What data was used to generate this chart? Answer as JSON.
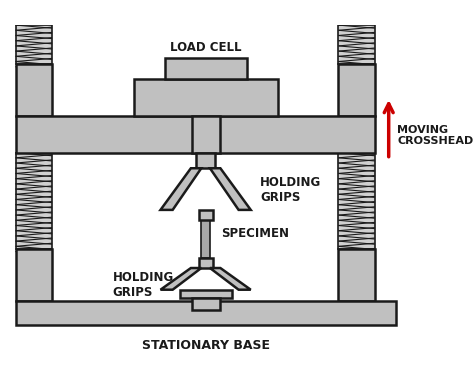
{
  "bg_color": "#ffffff",
  "gray_fill": "#c0c0c0",
  "gray_light": "#d8d8d8",
  "dark_outline": "#1a1a1a",
  "label_color": "#1a1a1a",
  "arrow_color": "#cc0000",
  "labels": {
    "load_cell": "LOAD CELL",
    "moving_crosshead": "MOVING\nCROSSHEAD",
    "holding_grips_top": "HOLDING\nGRIPS",
    "specimen": "SPECIMEN",
    "holding_grips_bot": "HOLDING\nGRIPS",
    "stationary_base": "STATIONARY BASE"
  },
  "figsize": [
    4.74,
    3.79
  ],
  "dpi": 100
}
